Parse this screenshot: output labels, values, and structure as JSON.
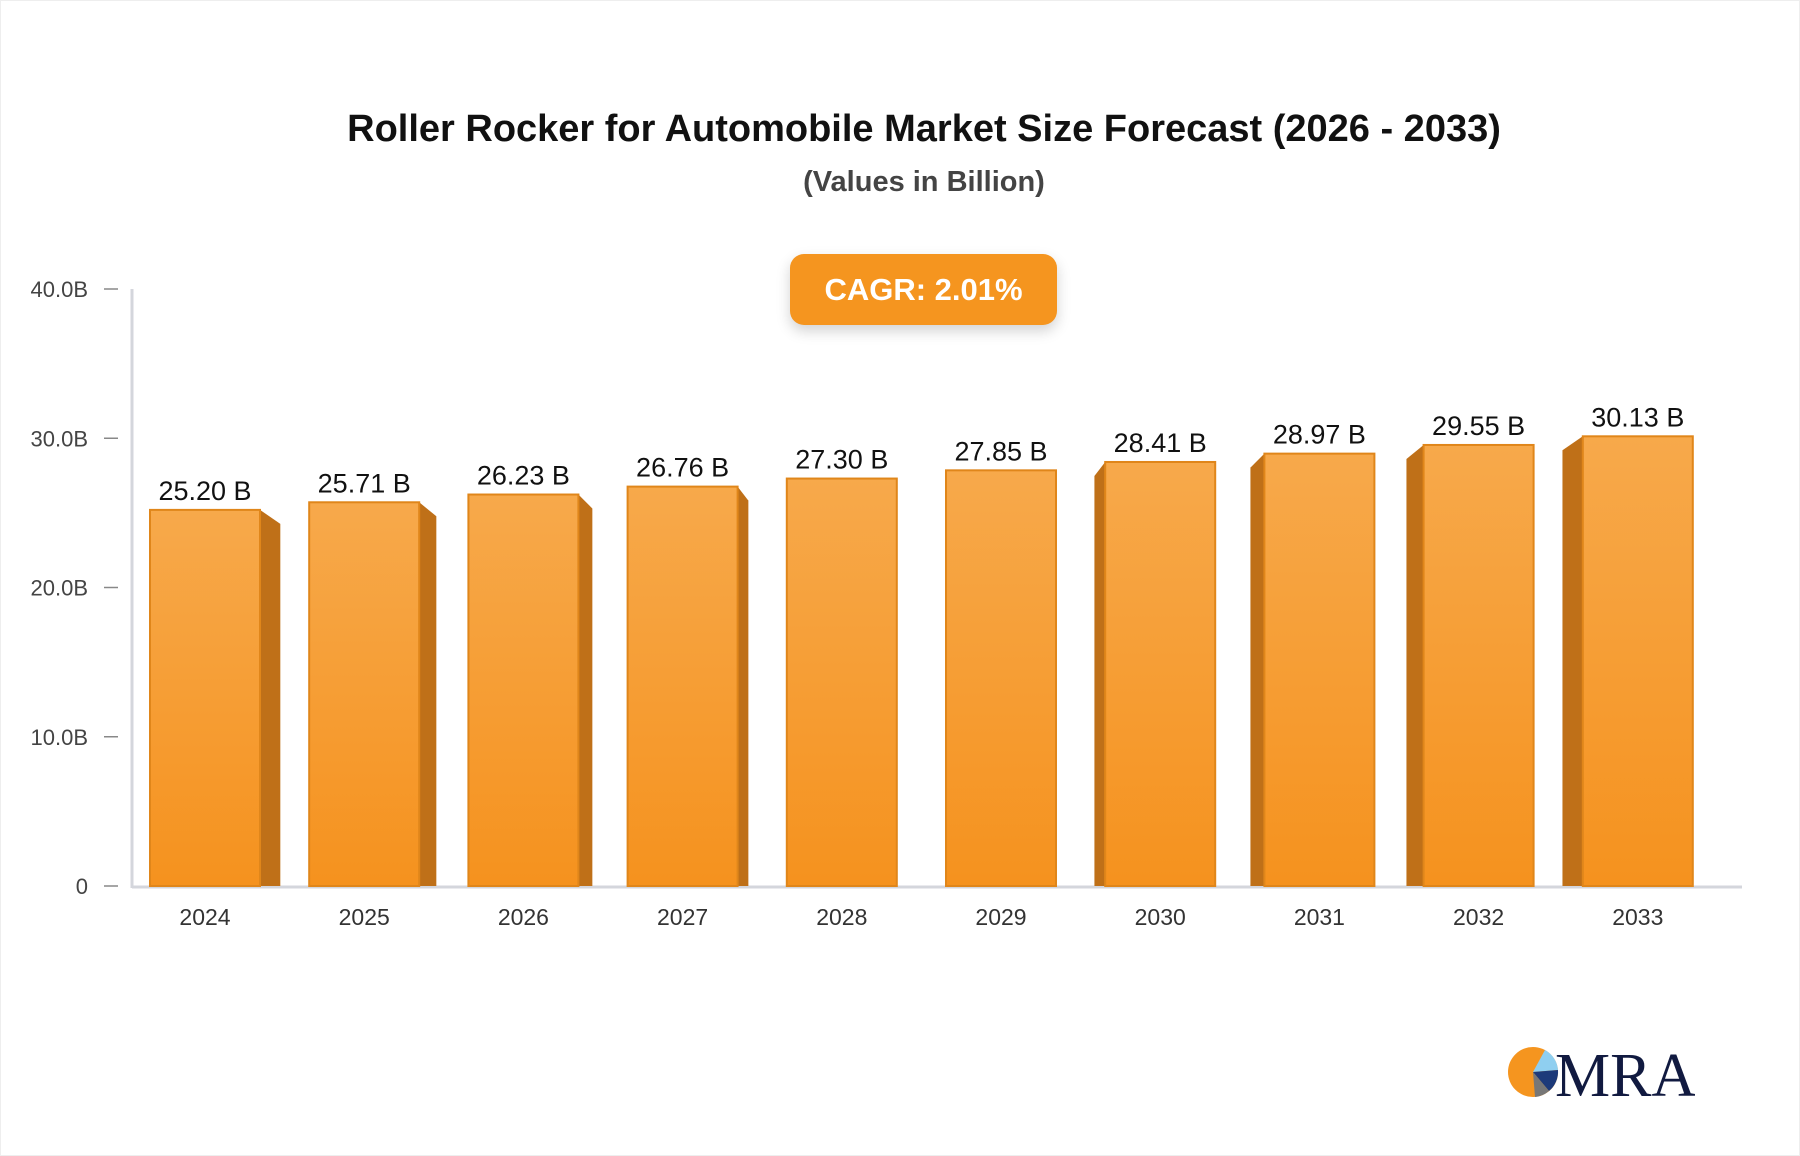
{
  "chart_data": {
    "type": "bar",
    "title": "Roller Rocker for Automobile Market Size Forecast (2026 - 2033)",
    "subtitle": "(Values in Billion)",
    "annotation": "CAGR: 2.01%",
    "categories": [
      "2024",
      "2025",
      "2026",
      "2027",
      "2028",
      "2029",
      "2030",
      "2031",
      "2032",
      "2033"
    ],
    "values": [
      25.2,
      25.71,
      26.23,
      26.76,
      27.3,
      27.85,
      28.41,
      28.97,
      29.55,
      30.13
    ],
    "data_labels": [
      "25.20 B",
      "25.71 B",
      "26.23 B",
      "26.76 B",
      "27.30 B",
      "27.85 B",
      "28.41 B",
      "28.97 B",
      "29.55 B",
      "30.13 B"
    ],
    "yticks": [
      0,
      10,
      20,
      30,
      40
    ],
    "ytick_labels": [
      "0",
      "10.0B",
      "20.0B",
      "30.0B",
      "40.0B"
    ],
    "ylim": [
      0,
      40
    ],
    "grid": false,
    "colors": {
      "bar_top": "#f7a94b",
      "bar_bottom": "#f5921e",
      "bar_side": "#bf7018",
      "bar_edge": "#e0861a",
      "cagr_bg": "#f5951f"
    }
  },
  "logo": {
    "text": "MRA"
  }
}
